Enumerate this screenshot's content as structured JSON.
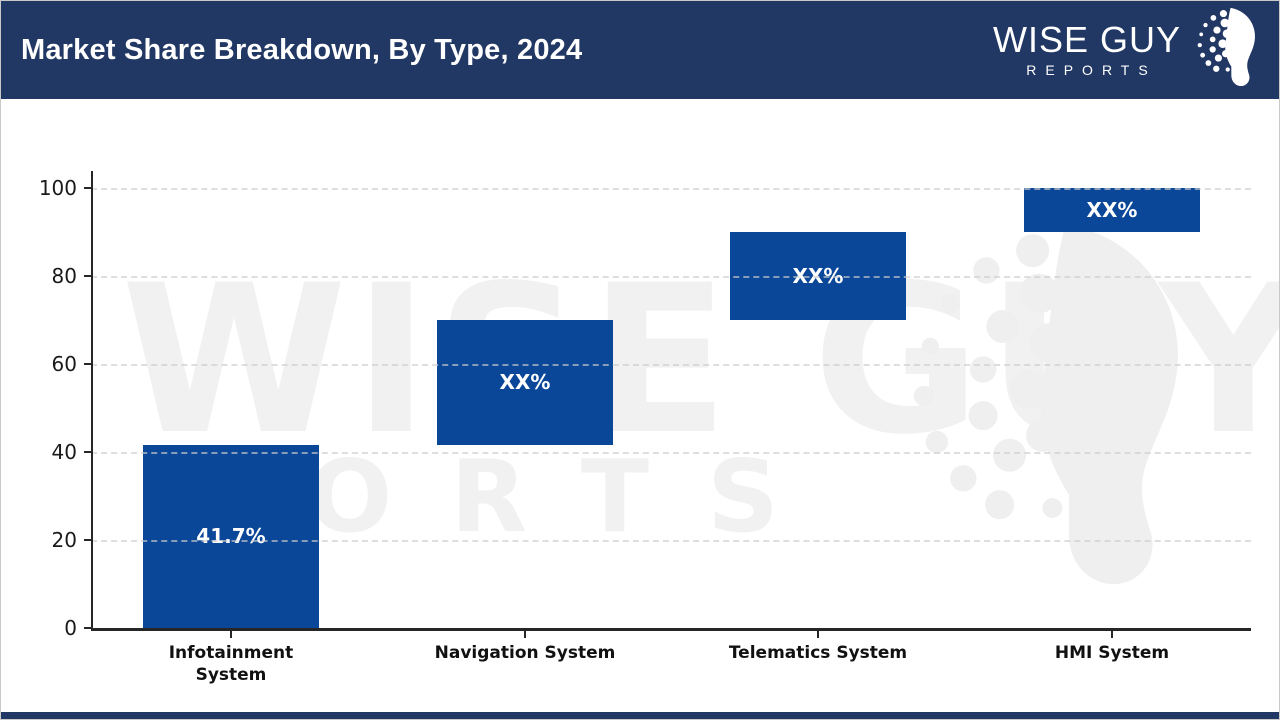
{
  "header": {
    "title": "Market Share Breakdown, By Type, 2024",
    "bg_color": "#213764",
    "logo": {
      "line1": "WISE GUY",
      "line2": "REPORTS"
    }
  },
  "watermark": {
    "line1": "WISE GUY",
    "line2": "PORTS"
  },
  "chart_data": {
    "type": "bar",
    "variant": "waterfall",
    "title": "Market Share Breakdown, By Type, 2024",
    "categories": [
      "Infotainment\nSystem",
      "Navigation System",
      "Telematics System",
      "HMI System"
    ],
    "bar_labels": [
      "41.7%",
      "XX%",
      "XX%",
      "XX%"
    ],
    "segments": [
      [
        0,
        41.7
      ],
      [
        41.7,
        70
      ],
      [
        70,
        90
      ],
      [
        90,
        100
      ]
    ],
    "ylim": [
      0,
      100
    ],
    "yticks": [
      0,
      20,
      40,
      60,
      80,
      100
    ],
    "grid": "horizontal dashed",
    "legend": "none",
    "bar_color": "#0a4799",
    "axis_color": "#262626"
  },
  "footer": {
    "bg_color": "#213764"
  }
}
